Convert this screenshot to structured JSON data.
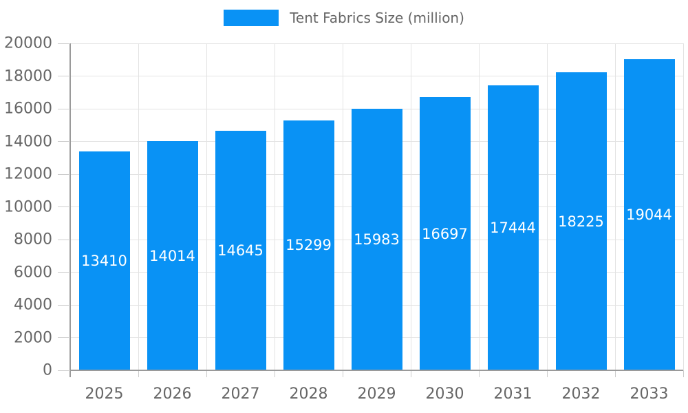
{
  "chart_data": {
    "type": "bar",
    "title": "Tent Fabrics Size (million)",
    "categories": [
      "2025",
      "2026",
      "2027",
      "2028",
      "2029",
      "2030",
      "2031",
      "2032",
      "2033"
    ],
    "values": [
      13410,
      14014,
      14645,
      15299,
      15983,
      16697,
      17444,
      18225,
      19044
    ],
    "xlabel": "",
    "ylabel": "",
    "ylim": [
      0,
      20000
    ],
    "ytick_step": 2000,
    "ytick_labels": [
      "0",
      "2000",
      "4000",
      "6000",
      "8000",
      "10000",
      "12000",
      "14000",
      "16000",
      "18000",
      "20000"
    ],
    "grid": true,
    "legend_position": "top",
    "bar_label_color": "#ffffff",
    "bar_color": "#0992f5",
    "grid_color": "#e3e3e3",
    "axis_line_color": "#9a9a9a",
    "tick_color": "#cccccc",
    "text_color": "#666666"
  }
}
